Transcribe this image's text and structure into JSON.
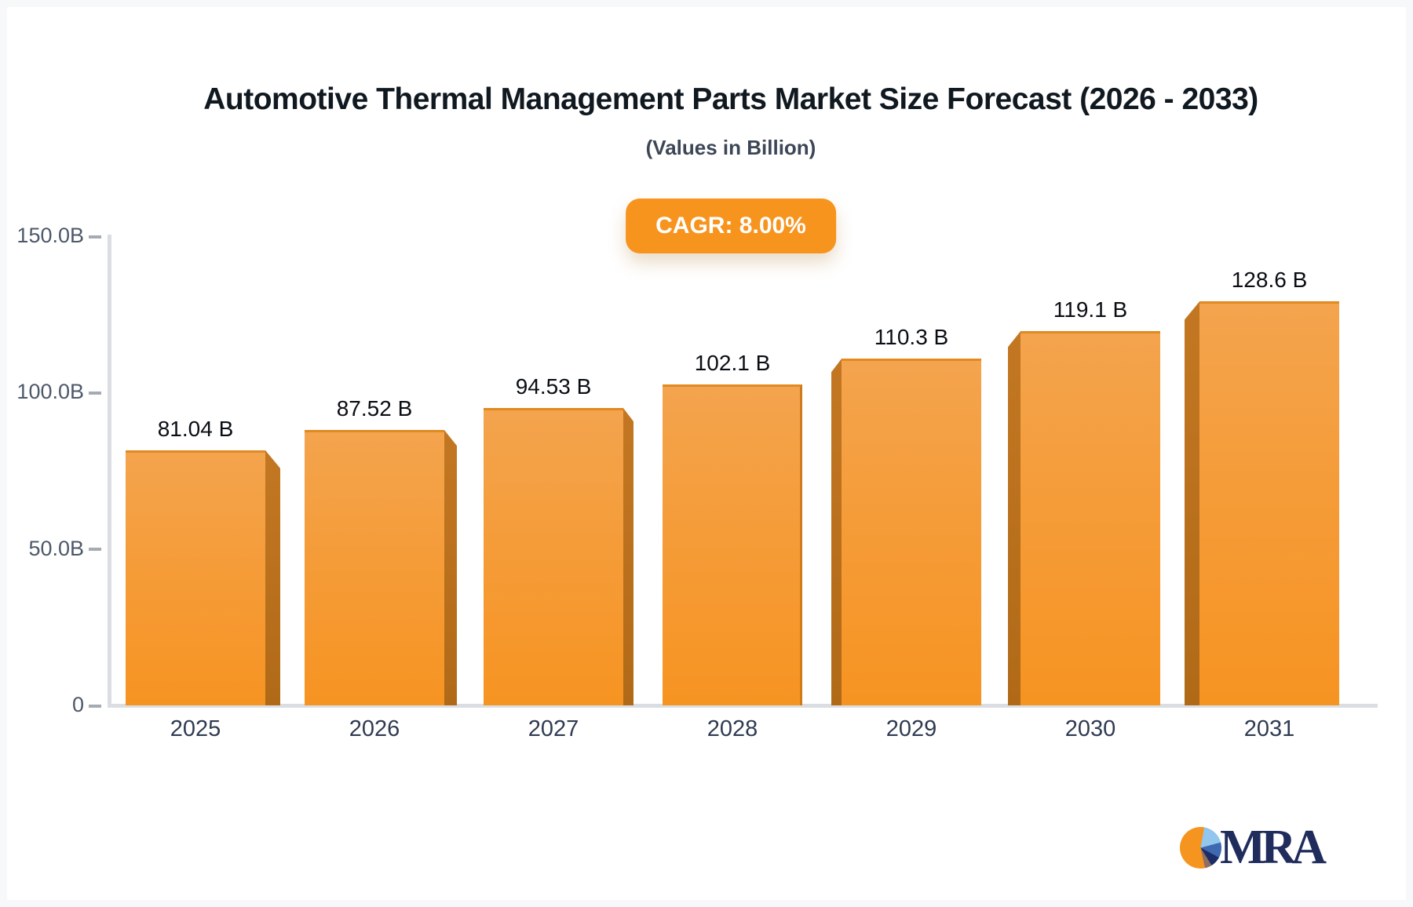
{
  "title": "Automotive Thermal Management Parts Market Size Forecast (2026 - 2033)",
  "subtitle": "(Values in Billion)",
  "badge": {
    "label": "CAGR: 8.00%"
  },
  "chart_data": {
    "type": "bar",
    "categories": [
      "2025",
      "2026",
      "2027",
      "2028",
      "2029",
      "2030",
      "2031"
    ],
    "values": [
      81.04,
      87.52,
      94.53,
      102.1,
      110.3,
      119.1,
      128.6
    ],
    "value_labels": [
      "81.04 B",
      "87.52 B",
      "94.53 B",
      "102.1 B",
      "110.3 B",
      "119.1 B",
      "128.6 B"
    ],
    "title": "Automotive Thermal Management Parts Market Size Forecast (2026 - 2033)",
    "xlabel": "",
    "ylabel": "Values in Billion",
    "ylim": [
      0,
      150
    ],
    "y_ticks": [
      {
        "value": 150,
        "label": "150.0B"
      },
      {
        "value": 100,
        "label": "100.0B"
      },
      {
        "value": 50,
        "label": "50.0B"
      },
      {
        "value": 0,
        "label": "0"
      }
    ],
    "grid": false,
    "legend": false,
    "colors": {
      "bar_top": "#F4A44E",
      "bar_bottom": "#F69422",
      "bar_side": "#BC731F",
      "axis": "#DADDE1",
      "tick": "#A5ABB3"
    }
  },
  "accent_color": "#F7941E",
  "logo": {
    "text": "MRA",
    "navy": "#1F2C5C",
    "pie_colors": {
      "orange": "#F5941F",
      "light_blue": "#92C6EC",
      "medium_blue": "#3E68B0",
      "dark_navy": "#1C2C66",
      "brown": "#8E6F62"
    }
  }
}
